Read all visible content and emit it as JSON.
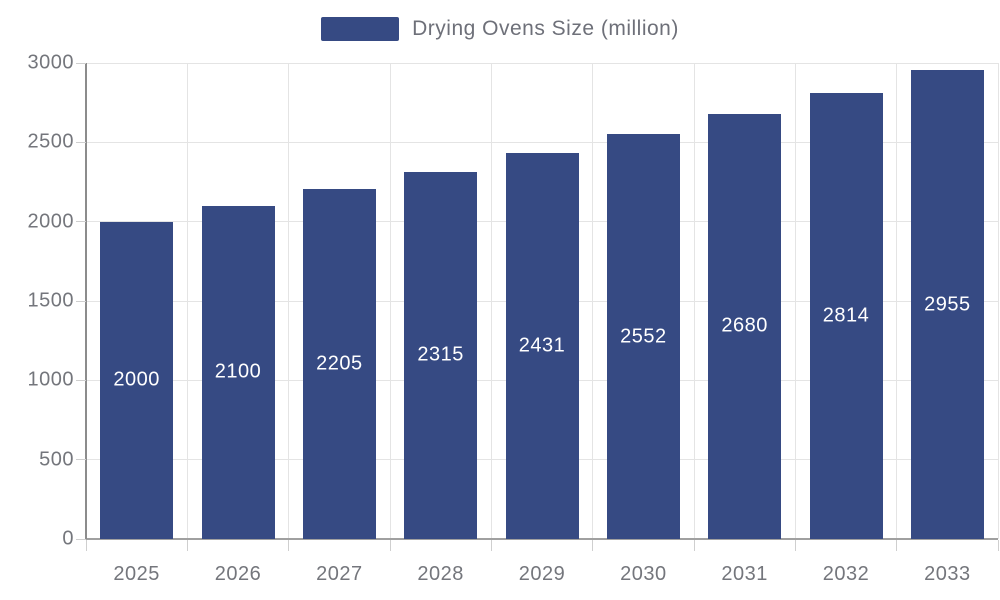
{
  "legend": {
    "label": "Drying Ovens Size (million)",
    "swatch_color": "#364a83"
  },
  "chart_data": {
    "type": "bar",
    "title": "Drying Ovens Size (million)",
    "series_name": "Drying Ovens Size (million)",
    "categories": [
      "2025",
      "2026",
      "2027",
      "2028",
      "2029",
      "2030",
      "2031",
      "2032",
      "2033"
    ],
    "values": [
      2000,
      2100,
      2205,
      2315,
      2431,
      2552,
      2680,
      2814,
      2955
    ],
    "bar_value_labels": [
      "2000",
      "2100",
      "2205",
      "2315",
      "2431",
      "2552",
      "2680",
      "2814",
      "2955"
    ],
    "xlabel": "",
    "ylabel": "",
    "ylim": [
      0,
      3000
    ],
    "yticks": [
      0,
      500,
      1000,
      1500,
      2000,
      2500,
      3000
    ],
    "grid": true,
    "legend_position": "top-center",
    "colors": {
      "bar": "#364a83",
      "bar_label": "#ffffff",
      "axis_label": "#74767c",
      "legend_text": "#6e7079",
      "gridline": "#e4e4e4",
      "tick": "#cfcfcf",
      "axis_line": "#a0a0a0",
      "background": "#ffffff"
    }
  }
}
